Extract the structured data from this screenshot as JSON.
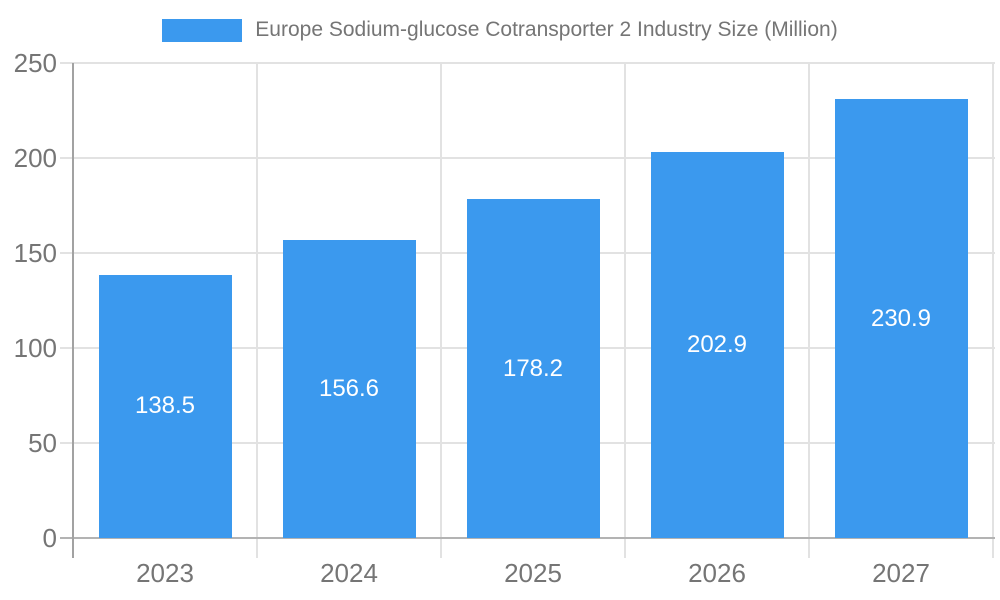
{
  "legend": {
    "label": "Europe Sodium-glucose Cotransporter 2 Industry Size (Million)"
  },
  "chart_data": {
    "type": "bar",
    "title": "Europe Sodium-glucose Cotransporter 2 Industry Size (Million)",
    "categories": [
      "2023",
      "2024",
      "2025",
      "2026",
      "2027"
    ],
    "series": [
      {
        "name": "Europe Sodium-glucose Cotransporter 2 Industry Size (Million)",
        "values": [
          138.5,
          156.6,
          178.2,
          202.9,
          230.9
        ]
      }
    ],
    "values": [
      138.5,
      156.6,
      178.2,
      202.9,
      230.9
    ],
    "value_labels": [
      "138.5",
      "156.6",
      "178.2",
      "202.9",
      "230.9"
    ],
    "xlabel": "",
    "ylabel": "",
    "ylim": [
      0,
      250
    ],
    "yticks": [
      0,
      50,
      100,
      150,
      200,
      250
    ],
    "grid": true,
    "legend_position": "top-center",
    "value_label_position": "inside-center",
    "colors": {
      "bar": "#3b99ee",
      "value_label": "#ffffff",
      "tick_label": "#757575",
      "legend_text": "#757575",
      "gridline": "#e2e2e2",
      "y_axis": "#a2a2a2",
      "x_axis": "#b3b3b3",
      "background": "#ffffff"
    }
  }
}
